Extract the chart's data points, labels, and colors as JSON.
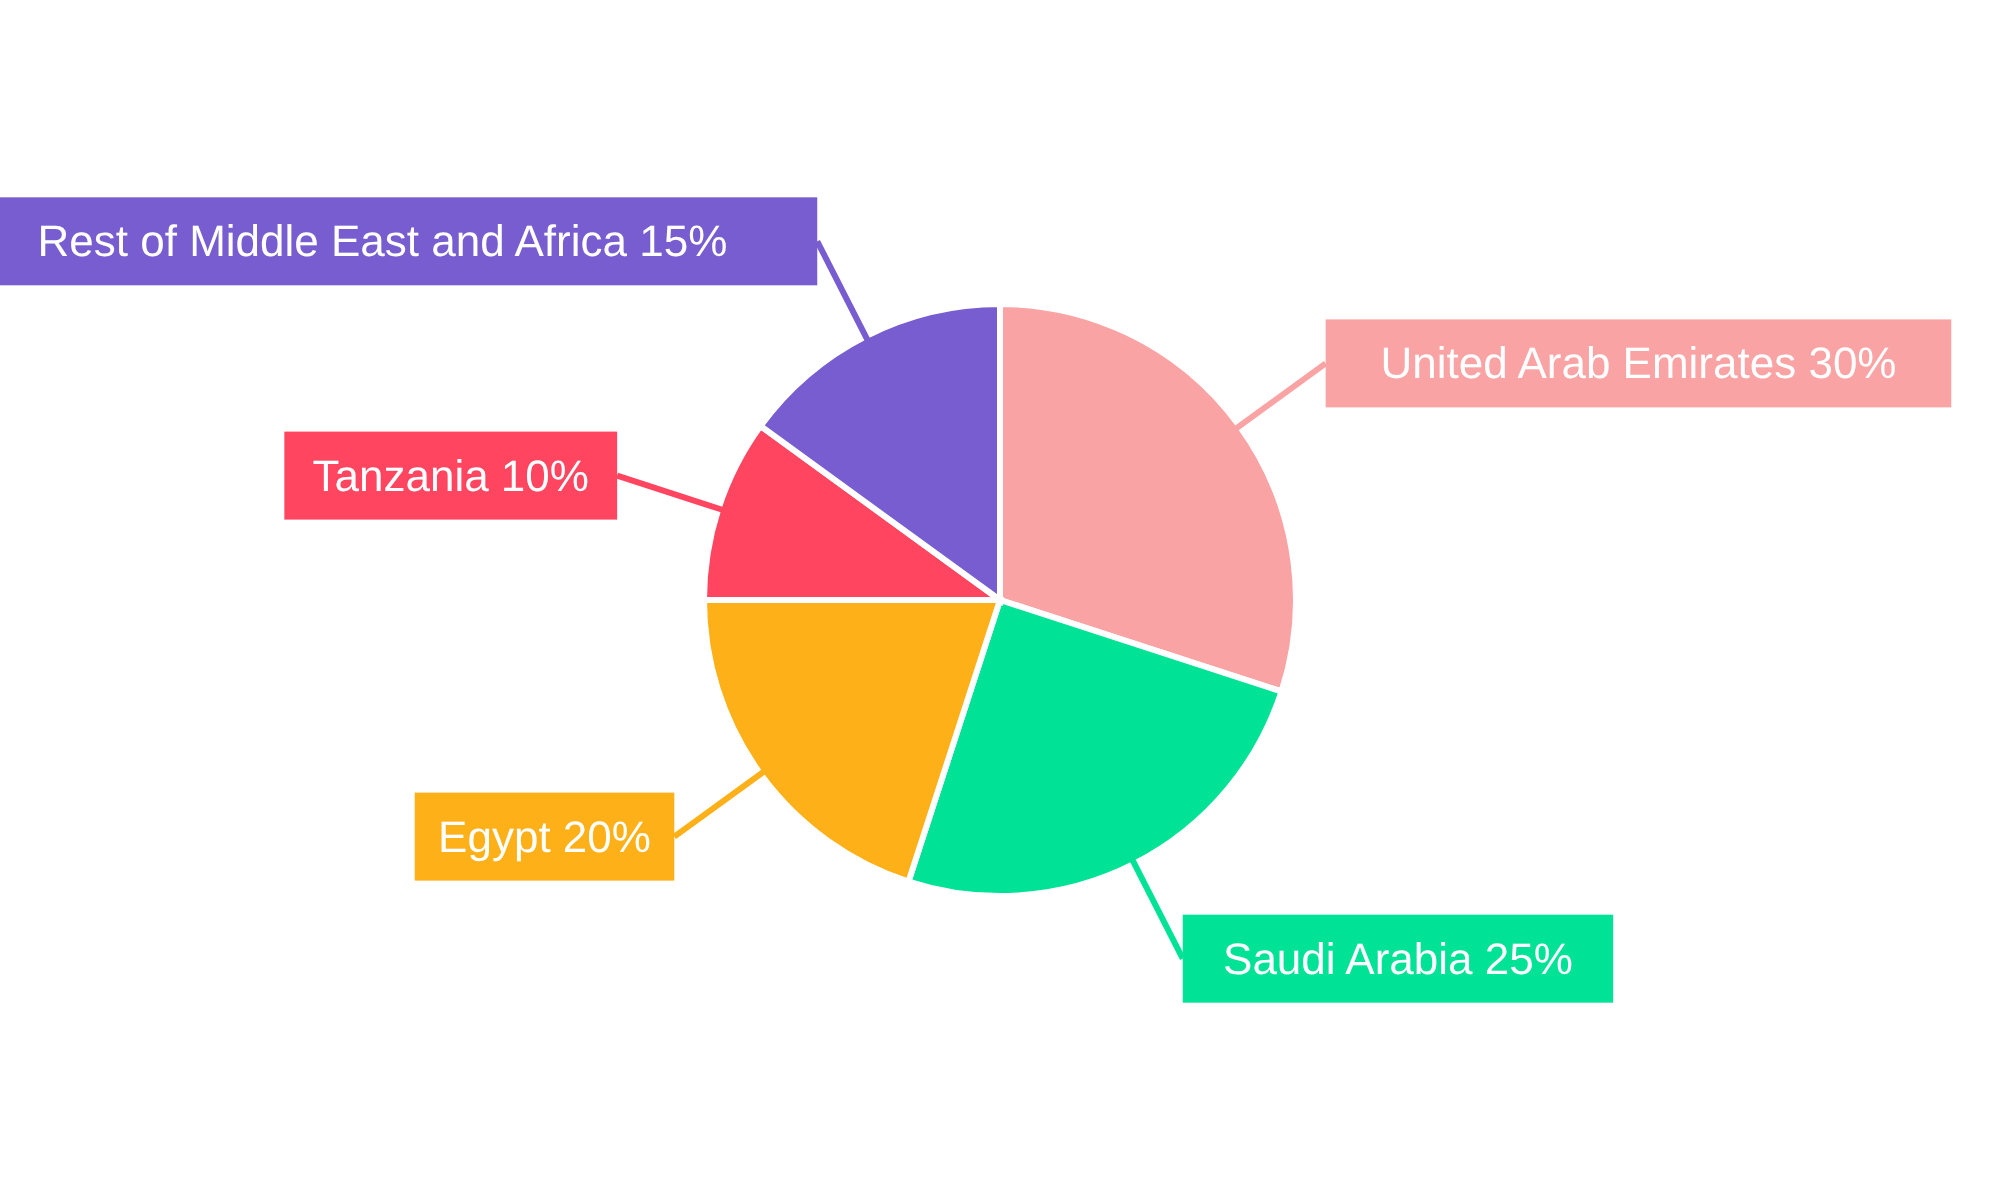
{
  "chart_data": {
    "type": "pie",
    "categories": [
      "United Arab Emirates",
      "Saudi Arabia",
      "Egypt",
      "Tanzania",
      "Rest of Middle East and Africa"
    ],
    "values": [
      30,
      25,
      20,
      10,
      15
    ],
    "value_labels": [
      "30%",
      "25%",
      "20%",
      "10%",
      "15%"
    ],
    "colors": [
      "#f9a3a4",
      "#00e396",
      "#feb019",
      "#ff4560",
      "#775dd0"
    ]
  }
}
